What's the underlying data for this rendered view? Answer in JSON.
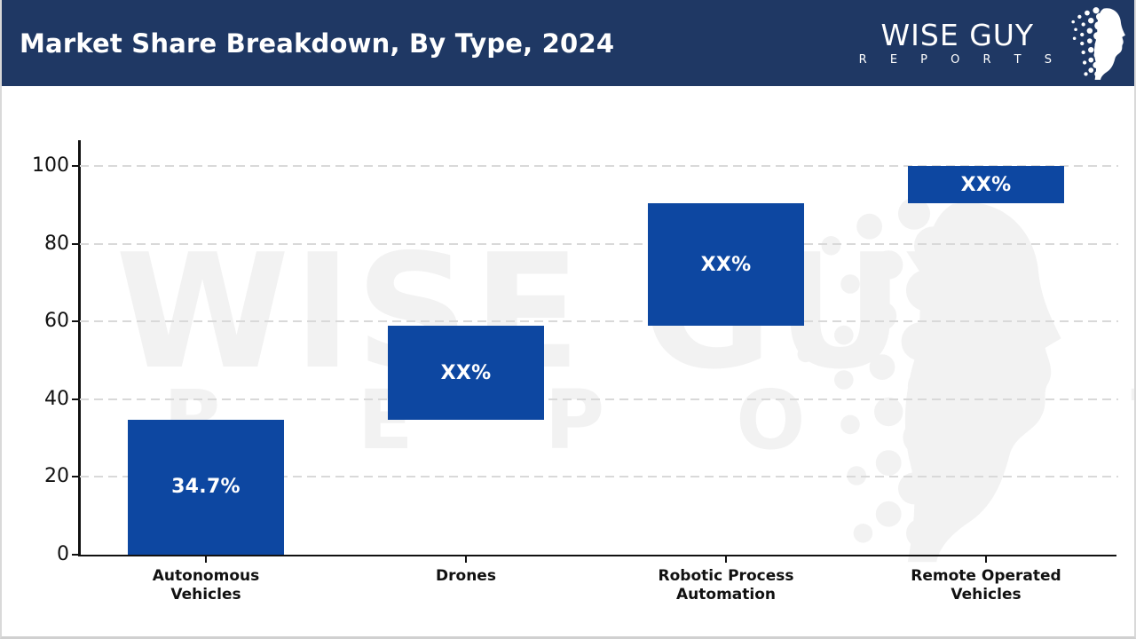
{
  "header": {
    "title": "Market Share Breakdown, By Type, 2024",
    "logo": {
      "name": "WISE GUY",
      "subtitle": "R E P O R T S"
    }
  },
  "watermark": {
    "line1": "WISE GUY",
    "line2": "R E P O R T S"
  },
  "colors": {
    "header_bg": "#1f3864",
    "bar": "#0d47a1",
    "grid": "#d9d9d9",
    "watermark": "#f2f2f2",
    "axis": "#111111",
    "bar_label": "#ffffff"
  },
  "chart_data": {
    "type": "bar",
    "subtype": "waterfall",
    "title": "Market Share Breakdown, By Type, 2024",
    "categories": [
      "Autonomous Vehicles",
      "Drones",
      "Robotic Process Automation",
      "Remote Operated Vehicles"
    ],
    "segments": [
      {
        "category": "Autonomous\nVehicles",
        "start": 0,
        "end": 34.7,
        "label": "34.7%"
      },
      {
        "category": "Drones",
        "start": 34.7,
        "end": 58.9,
        "label": "XX%"
      },
      {
        "category": "Robotic Process\nAutomation",
        "start": 58.9,
        "end": 90.4,
        "label": "XX%"
      },
      {
        "category": "Remote Operated\nVehicles",
        "start": 90.4,
        "end": 100,
        "label": "XX%"
      }
    ],
    "yticks": [
      0,
      20,
      40,
      60,
      80,
      100
    ],
    "ylim": [
      0,
      107
    ],
    "xlabel": "",
    "ylabel": "",
    "grid": "horizontal-dashed",
    "legend": "none"
  }
}
